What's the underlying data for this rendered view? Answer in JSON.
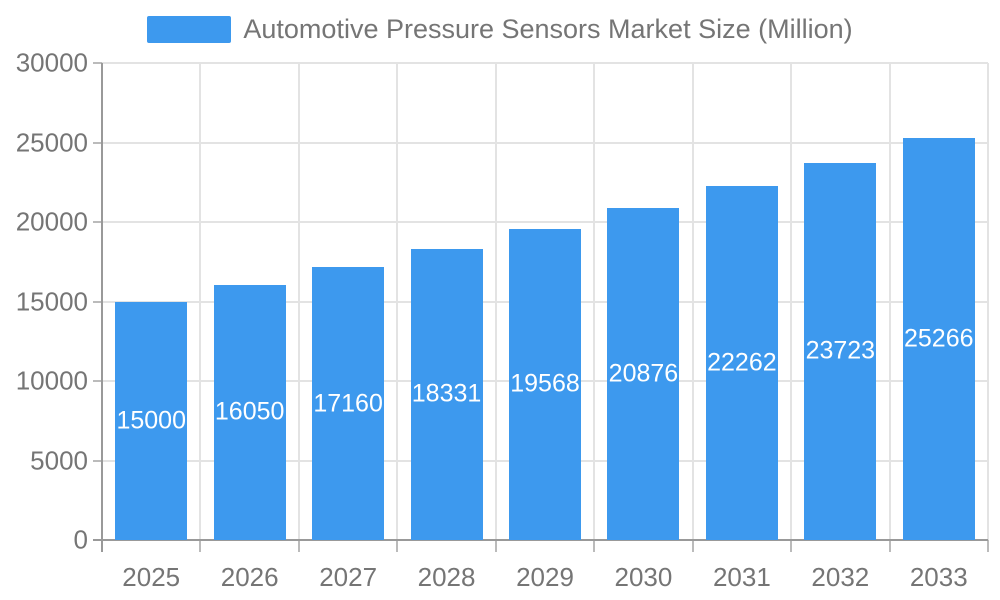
{
  "chart_data": {
    "type": "bar",
    "title": "Automotive Pressure Sensors Market Size (Million)",
    "categories": [
      "2025",
      "2026",
      "2027",
      "2028",
      "2029",
      "2030",
      "2031",
      "2032",
      "2033"
    ],
    "values": [
      15000,
      16050,
      17160,
      18331,
      19568,
      20876,
      22262,
      23723,
      25266
    ],
    "series_name": "Automotive Pressure Sensors Market Size (Million)",
    "xlabel": "",
    "ylabel": "",
    "ylim": [
      0,
      30000
    ],
    "yticks": [
      0,
      5000,
      10000,
      15000,
      20000,
      25000,
      30000
    ],
    "grid": true,
    "legend_position": "top-center",
    "value_labels": "inside-center",
    "colors": {
      "bar": "#3D99EE",
      "value_label_text": "#FFFFFF",
      "axis_text": "#757575",
      "axis_line": "#999999",
      "gridline": "#E3E3E3",
      "tick_mark": "#BBBBBB",
      "background": "#FFFFFF"
    }
  }
}
